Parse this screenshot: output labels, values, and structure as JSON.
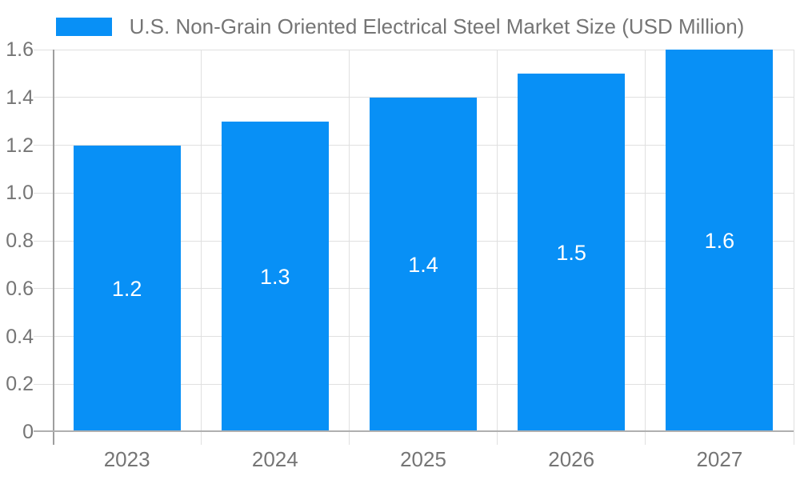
{
  "legend": {
    "series_label": "U.S. Non-Grain Oriented Electrical Steel Market Size (USD Million)"
  },
  "chart_data": {
    "type": "bar",
    "title": "U.S. Non-Grain Oriented Electrical Steel Market Size (USD Million)",
    "categories": [
      "2023",
      "2024",
      "2025",
      "2026",
      "2027"
    ],
    "values": [
      1.2,
      1.3,
      1.4,
      1.5,
      1.6
    ],
    "bar_labels": [
      "1.2",
      "1.3",
      "1.4",
      "1.5",
      "1.6"
    ],
    "xlabel": "",
    "ylabel": "",
    "ylim": [
      0,
      1.6
    ],
    "y_ticks": [
      0,
      0.2,
      0.4,
      0.6,
      0.8,
      1.0,
      1.2,
      1.4,
      1.6
    ],
    "y_tick_labels": [
      "0",
      "0.2",
      "0.4",
      "0.6",
      "0.8",
      "1.0",
      "1.2",
      "1.4",
      "1.6"
    ],
    "grid": true,
    "legend_position": "top"
  },
  "colors": {
    "bar": "#0890f6",
    "bar_label": "#ffffff",
    "text": "#757575",
    "gridline": "#e0e0e0",
    "axis_line": "#9e9e9e",
    "baseline": "#b0b0b0",
    "background": "#ffffff"
  }
}
